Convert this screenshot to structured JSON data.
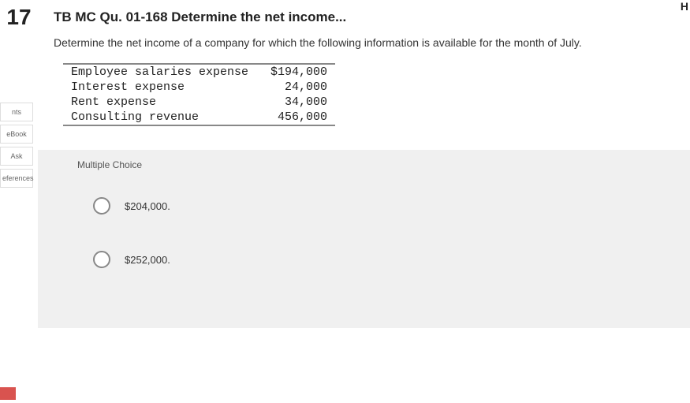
{
  "question_number": "17",
  "title": "TB MC Qu. 01-168 Determine the net income...",
  "prompt": "Determine the net income of a company for which the following information is available for the month of July.",
  "table": {
    "rows": [
      {
        "label": "Employee salaries expense",
        "value": "$194,000"
      },
      {
        "label": "Interest expense",
        "value": "24,000"
      },
      {
        "label": "Rent expense",
        "value": "34,000"
      },
      {
        "label": "Consulting revenue",
        "value": "456,000"
      }
    ]
  },
  "mc_header": "Multiple Choice",
  "options": [
    {
      "label": "$204,000."
    },
    {
      "label": "$252,000."
    }
  ],
  "sidebar": {
    "items": [
      {
        "label": "nts"
      },
      {
        "label": "eBook"
      },
      {
        "label": "Ask"
      },
      {
        "label": "eferences"
      }
    ]
  },
  "corner_letter": "H"
}
